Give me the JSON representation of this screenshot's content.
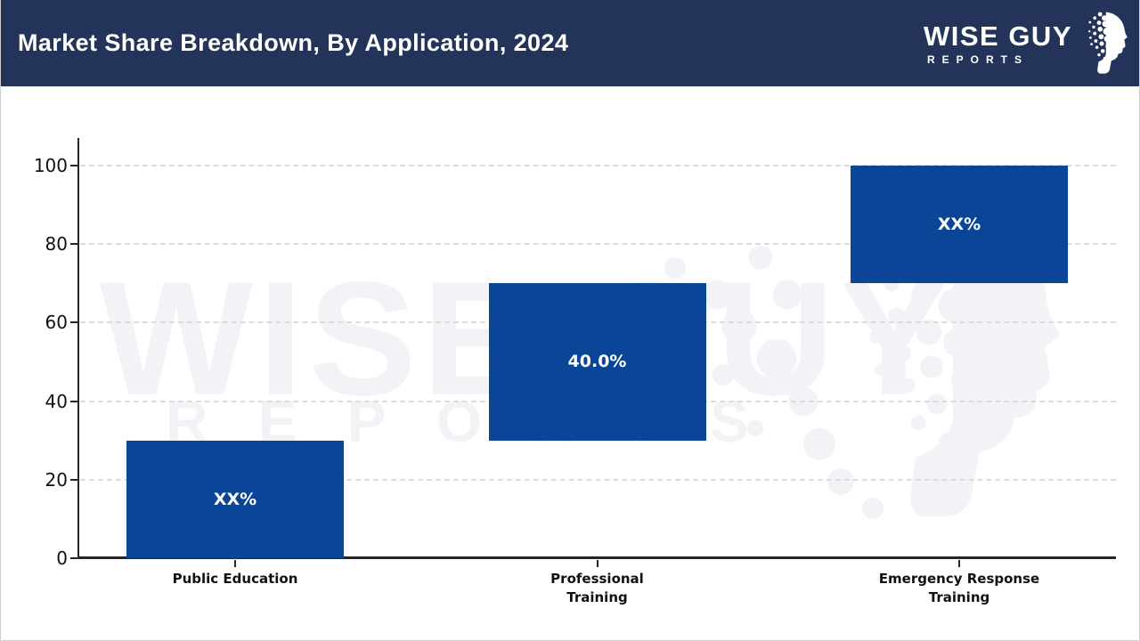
{
  "header": {
    "title": "Market Share Breakdown, By Application, 2024",
    "logo": {
      "line1": "WISE GUY",
      "line2": "REPORTS"
    }
  },
  "watermark": {
    "line1": "WISE GUY",
    "line2": "REPORTS"
  },
  "colors": {
    "header_bg": "#233359",
    "bar": "#0a4597",
    "bar_label": "#ffffff",
    "axis": "#262626",
    "grid": "#dcdcdc",
    "tick_label": "#111111",
    "watermark": "#f2f3f6"
  },
  "chart_data": {
    "type": "bar",
    "variant": "floating-segment waterfall of market share",
    "title": "Market Share Breakdown, By Application, 2024",
    "categories": [
      "Public Education",
      "Professional\nTraining",
      "Emergency Response\nTraining"
    ],
    "segments": [
      {
        "category": "Public Education",
        "start": 0,
        "end": 30,
        "label": "XX%"
      },
      {
        "category": "Professional Training",
        "start": 30,
        "end": 70,
        "label": "40.0%"
      },
      {
        "category": "Emergency Response Training",
        "start": 70,
        "end": 100,
        "label": "XX%"
      }
    ],
    "ylim": [
      0,
      100
    ],
    "yticks": [
      0,
      20,
      40,
      60,
      80,
      100
    ],
    "xlabel": "",
    "ylabel": "",
    "grid": "horizontal dashed",
    "legend": "none"
  }
}
